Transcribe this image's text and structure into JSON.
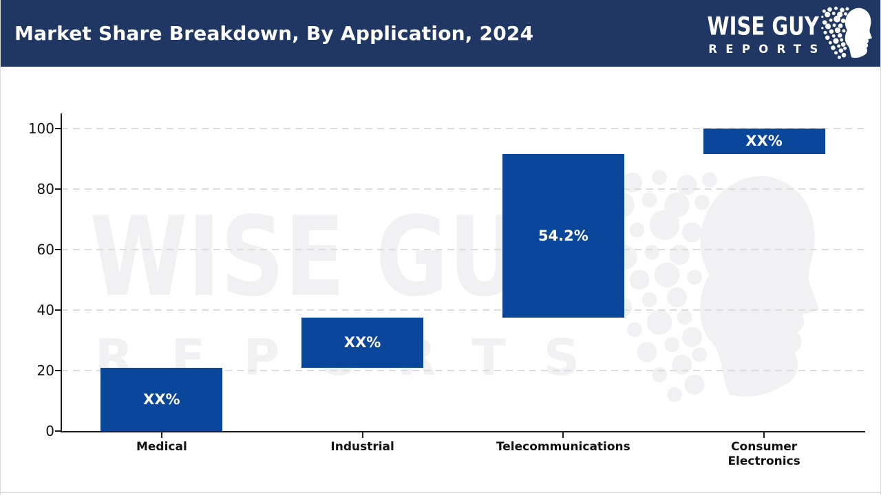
{
  "header": {
    "title": "Market Share Breakdown, By Application, 2024",
    "brand": {
      "line1": "WISE GUY",
      "line2": "REPORTS"
    }
  },
  "colors": {
    "header_bg": "#203764",
    "bar": "#0a4699",
    "grid": "#dcdcdc",
    "axis": "#1a1a1a",
    "watermark": "#f1f1f4",
    "bar_label": "#ffffff"
  },
  "chart_data": {
    "type": "bar",
    "subtype": "waterfall-segments",
    "title": "Market Share Breakdown, By Application, 2024",
    "xlabel": "",
    "ylabel": "",
    "categories": [
      "Medical",
      "Industrial",
      "Telecommunications",
      "Consumer\nElectronics"
    ],
    "bars": [
      {
        "category": "Medical",
        "start": 0,
        "end": 21,
        "label": "XX%"
      },
      {
        "category": "Industrial",
        "start": 21,
        "end": 37.5,
        "label": "XX%"
      },
      {
        "category": "Telecommunications",
        "start": 37.5,
        "end": 91.7,
        "label": "54.2%"
      },
      {
        "category": "Consumer Electronics",
        "start": 91.7,
        "end": 100,
        "label": "XX%"
      }
    ],
    "yticks": [
      0,
      20,
      40,
      60,
      80,
      100
    ],
    "ylim": [
      0,
      105
    ],
    "grid": "dashed-horizontal",
    "legend": "none"
  }
}
